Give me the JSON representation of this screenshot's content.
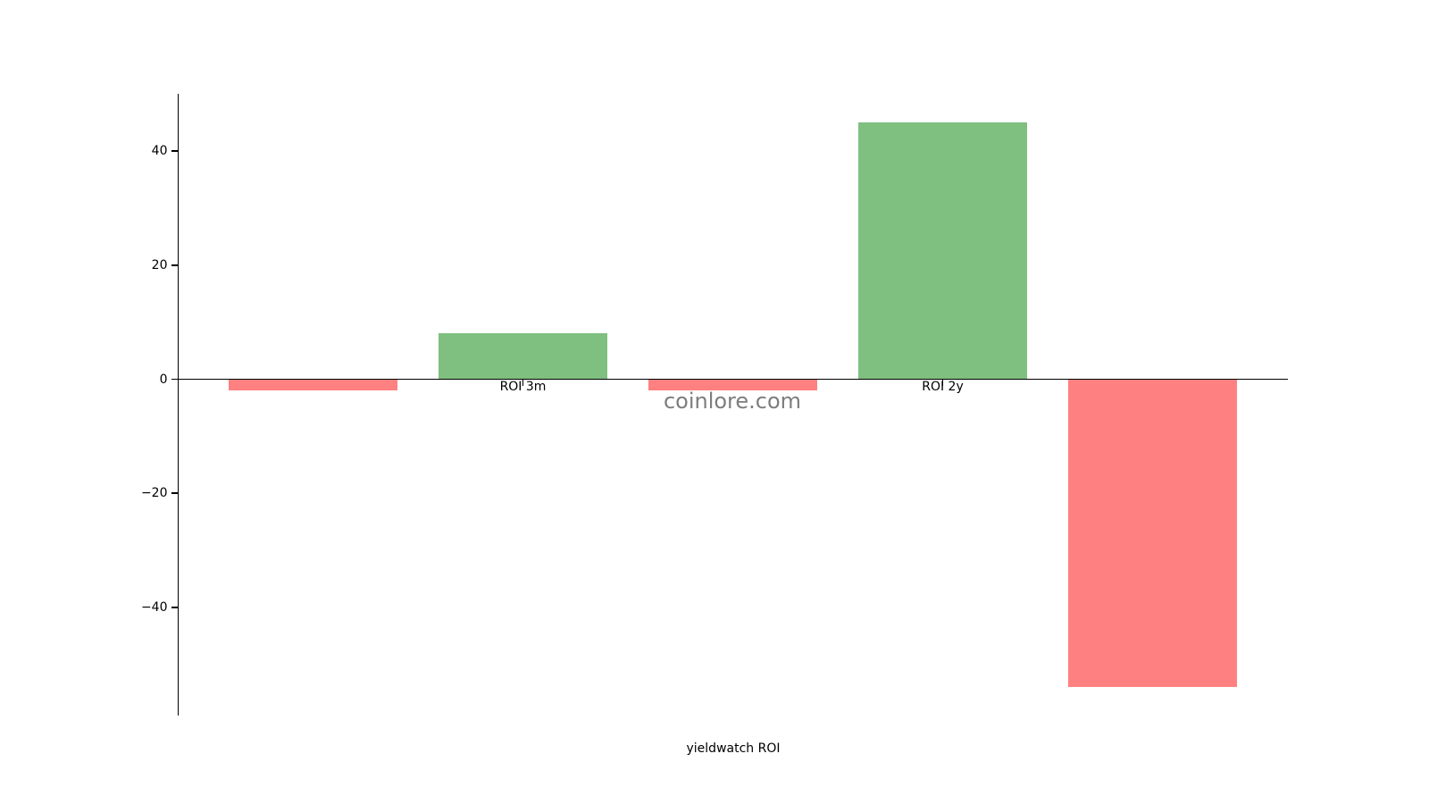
{
  "watermark": {
    "text": "coinlore.com",
    "color": "#7d7d7d"
  },
  "chart_data": {
    "type": "bar",
    "title": "",
    "xlabel": "yieldwatch ROI",
    "ylabel": "",
    "categories": [
      "",
      "ROI 3m",
      "",
      "ROI 2y",
      ""
    ],
    "values": [
      -2,
      8,
      -2,
      45,
      -54
    ],
    "bar_colors": {
      "positive": "#7fbf7f",
      "negative": "#ff8080"
    },
    "axis_color": "#000000",
    "background_color": "#ffffff",
    "yticks": [
      {
        "value": 40,
        "label": "40"
      },
      {
        "value": 20,
        "label": "20"
      },
      {
        "value": 0,
        "label": "0"
      },
      {
        "value": -20,
        "label": "−20"
      },
      {
        "value": -40,
        "label": "−40"
      }
    ],
    "ylim": [
      -59,
      50
    ],
    "grid": false,
    "legend": "none",
    "baseline_at_zero": true
  }
}
